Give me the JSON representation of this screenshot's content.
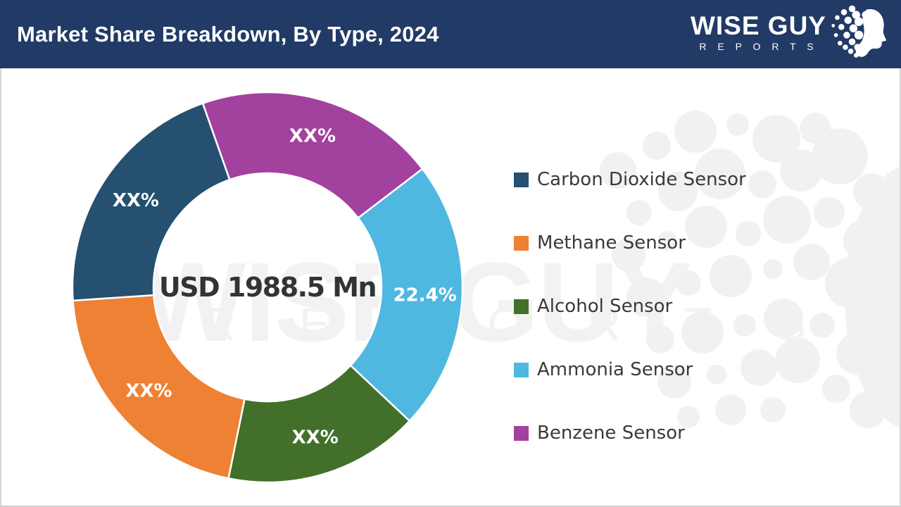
{
  "header": {
    "title": "Market Share Breakdown, By Type, 2024",
    "logo": {
      "name": "WISE GUY",
      "tagline": "R E P O R T S"
    }
  },
  "watermark": {
    "word1": "WISE GUY",
    "word2": "R E P O R T S"
  },
  "chart_data": {
    "type": "donut",
    "title": "Market Share Breakdown, By Type, 2024",
    "center_label": "USD 1988.5 Mn",
    "units": "percent share",
    "direction": "clockwise",
    "start_angle_deg": -19.4,
    "hole_radius_ratio": 0.585,
    "legend_position": "right",
    "slices": [
      {
        "label": "Benzene Sensor",
        "value": 20.0,
        "display": "XX%",
        "color": "#a2419e"
      },
      {
        "label": "Ammonia Sensor",
        "value": 22.4,
        "display": "22.4%",
        "color": "#4fb8e1"
      },
      {
        "label": "Alcohol Sensor",
        "value": 16.2,
        "display": "XX%",
        "color": "#426f29"
      },
      {
        "label": "Methane Sensor",
        "value": 20.7,
        "display": "XX%",
        "color": "#ee8133"
      },
      {
        "label": "Carbon Dioxide Sensor",
        "value": 20.7,
        "display": "XX%",
        "color": "#25506f"
      }
    ],
    "legend": [
      {
        "label": "Carbon Dioxide Sensor",
        "color": "#25506f"
      },
      {
        "label": "Methane Sensor",
        "color": "#ee8133"
      },
      {
        "label": "Alcohol Sensor",
        "color": "#426f29"
      },
      {
        "label": "Ammonia Sensor",
        "color": "#4fb8e1"
      },
      {
        "label": "Benzene Sensor",
        "color": "#a2419e"
      }
    ]
  },
  "colors": {
    "header_bg": "#213a66",
    "center_text": "#333333",
    "legend_text": "#3a3a3a",
    "watermark": "#f2f2f5",
    "panel_border": "#d6d6d6",
    "slice_label_text": "#ffffff"
  }
}
